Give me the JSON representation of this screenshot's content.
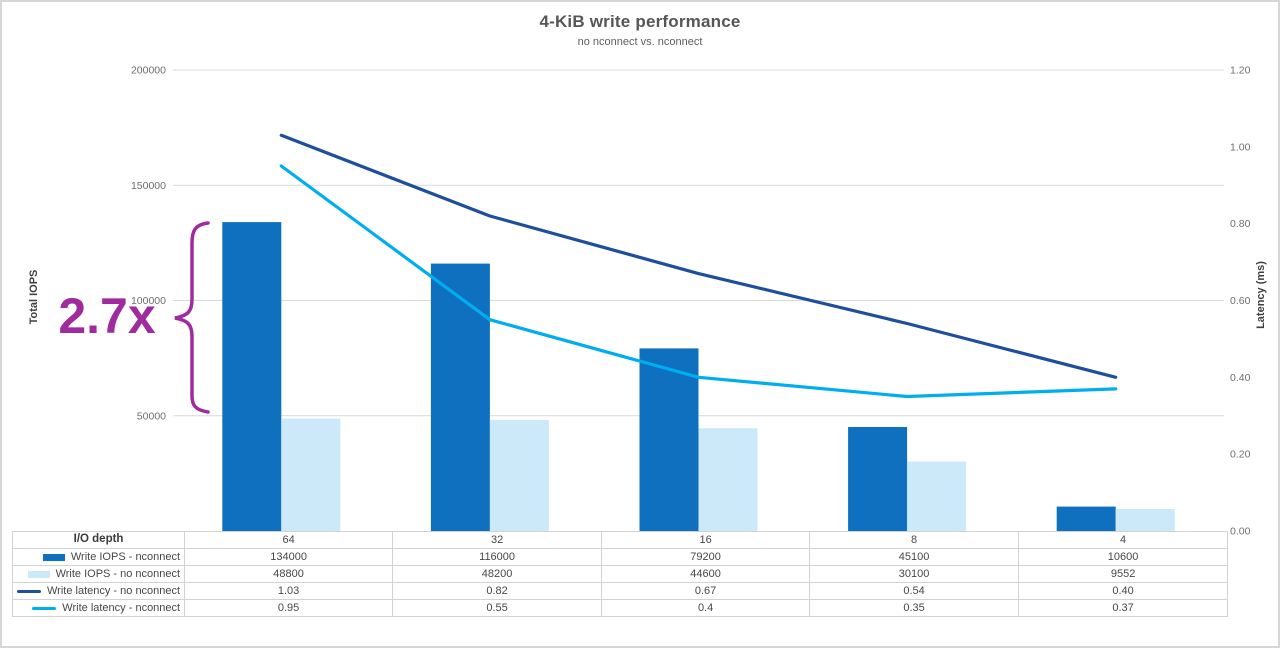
{
  "header": {
    "title": "4-KiB write performance",
    "subtitle": "no nconnect vs. nconnect"
  },
  "chart_data": {
    "type": "bar",
    "title": "4-KiB write performance",
    "subtitle": "no nconnect vs. nconnect",
    "categories": [
      "64",
      "32",
      "16",
      "8",
      "4"
    ],
    "x_axis": {
      "label": "I/O depth"
    },
    "left_axis": {
      "label": "Total IOPS",
      "min": 0,
      "max": 200000,
      "ticks": [
        "200000",
        "150000",
        "100000",
        "50000"
      ]
    },
    "right_axis": {
      "label": "Latency (ms)",
      "min": 0,
      "max": 1.2,
      "ticks": [
        "1.20",
        "1.00",
        "0.80",
        "0.60",
        "0.40",
        "0.20",
        "0.00"
      ]
    },
    "grid": "horizontal",
    "legend_position": "table-left",
    "series": [
      {
        "name": "Write IOPS - nconnect",
        "type": "bar",
        "axis": "left",
        "color": "#0F70C0",
        "values": [
          134000,
          116000,
          79200,
          45100,
          10600
        ],
        "display_values": [
          "134000",
          "116000",
          "79200",
          "45100",
          "10600"
        ]
      },
      {
        "name": "Write IOPS - no nconnect",
        "type": "bar",
        "axis": "left",
        "color": "#CBE9F9",
        "values": [
          48800,
          48200,
          44600,
          30100,
          9552
        ],
        "display_values": [
          "48800",
          "48200",
          "44600",
          "30100",
          "9552"
        ]
      },
      {
        "name": "Write latency - no nconnect",
        "type": "line",
        "axis": "right",
        "color": "#1F4E9B",
        "values": [
          1.03,
          0.82,
          0.67,
          0.54,
          0.4
        ],
        "display_values": [
          "1.03",
          "0.82",
          "0.67",
          "0.54",
          "0.40"
        ]
      },
      {
        "name": "Write latency - nconnect",
        "type": "line",
        "axis": "right",
        "color": "#00AEEF",
        "values": [
          0.95,
          0.55,
          0.4,
          0.35,
          0.37
        ],
        "display_values": [
          "0.95",
          "0.55",
          "0.4",
          "0.35",
          "0.37"
        ]
      }
    ],
    "annotation": {
      "text": "2.7x",
      "color": "#A02B9E"
    }
  }
}
